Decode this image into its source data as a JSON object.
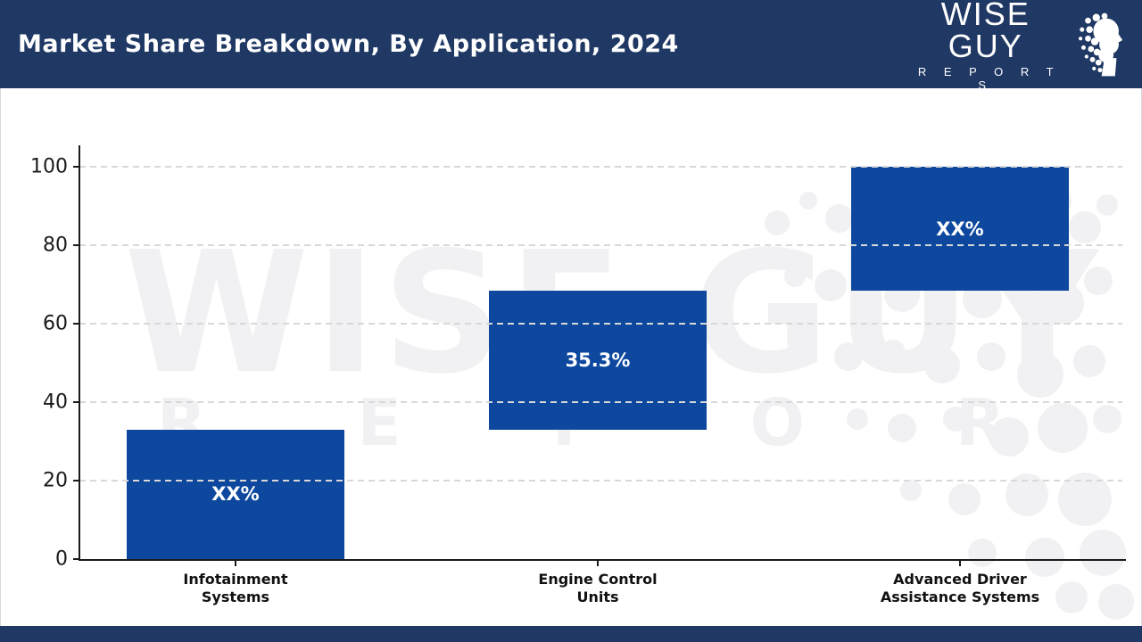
{
  "header": {
    "title": "Market Share Breakdown, By Application, 2024",
    "logo": {
      "line1": "WISE GUY",
      "line2": "R E P O R T S"
    }
  },
  "watermark": {
    "line1": "WISE GUY",
    "line2": "R E P O R T S"
  },
  "chart_data": {
    "type": "bar",
    "subtype": "waterfall",
    "title": "Market Share Breakdown, By Application, 2024",
    "categories": [
      "Infotainment Systems",
      "Engine Control Units",
      "Advanced Driver Assistance Systems"
    ],
    "category_lines": [
      [
        "Infotainment",
        "Systems"
      ],
      [
        "Engine Control",
        "Units"
      ],
      [
        "Advanced Driver",
        "Assistance Systems"
      ]
    ],
    "segments": [
      {
        "start": 0,
        "end": 33,
        "value_label": "XX%"
      },
      {
        "start": 33,
        "end": 68.3,
        "value_label": "35.3%"
      },
      {
        "start": 68.3,
        "end": 100,
        "value_label": "XX%"
      }
    ],
    "ylim": [
      0,
      100
    ],
    "yticks": [
      0,
      20,
      40,
      60,
      80,
      100
    ],
    "xlabel": "",
    "ylabel": "",
    "grid": "horizontal-dashed",
    "legend": "none"
  },
  "colors": {
    "header_bg": "#1f3864",
    "footer_bg": "#1f3864",
    "bar": "#0d489e",
    "grid": "#d8d8d8",
    "axis": "#1a1a1a",
    "watermark": "#f1f1f3",
    "bar_label_text": "#ffffff"
  }
}
